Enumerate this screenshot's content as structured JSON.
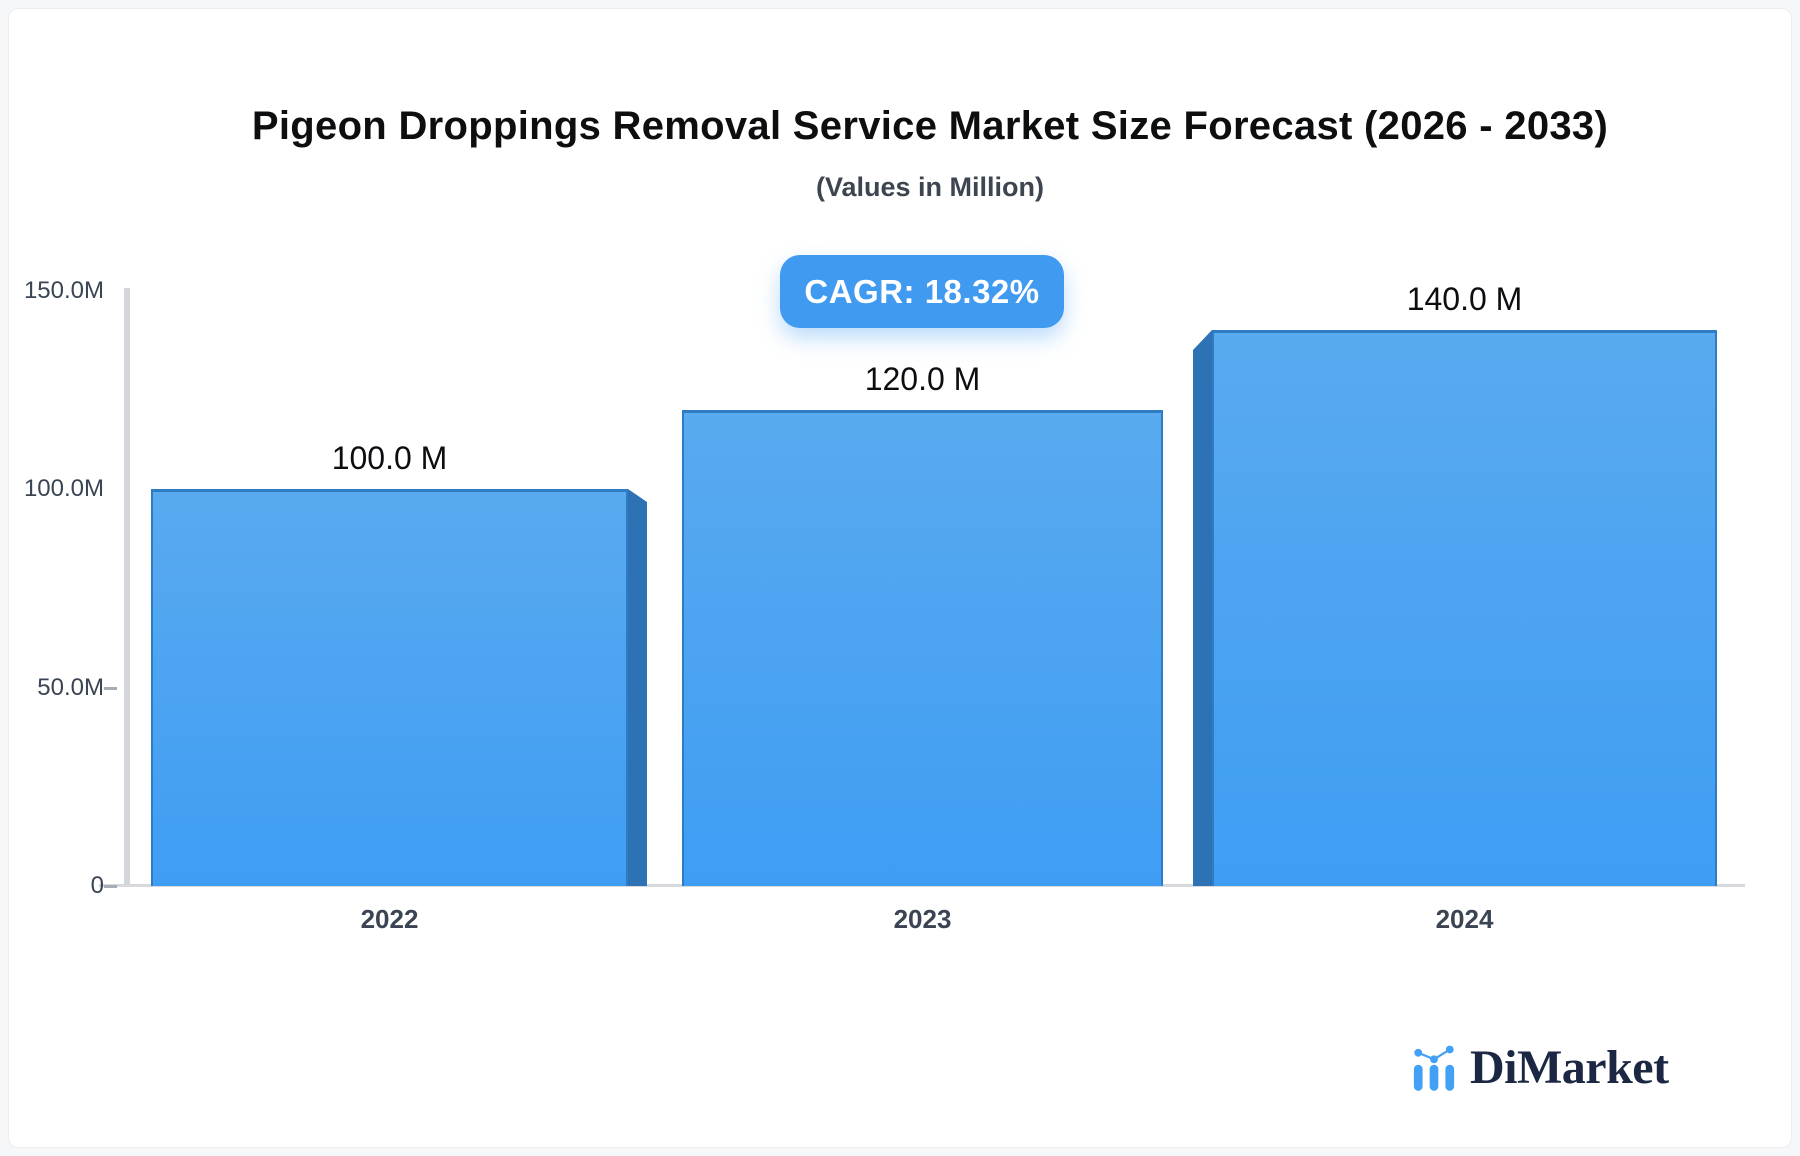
{
  "header": {
    "title": "Pigeon Droppings Removal Service Market Size Forecast (2026 - 2033)",
    "subtitle": "(Values in Million)",
    "cagr_label": "CAGR: 18.32%"
  },
  "chart_data": {
    "type": "bar",
    "title": "Pigeon Droppings Removal Service Market Size Forecast (2026 - 2033)",
    "subtitle": "(Values in Million)",
    "unit": "Million",
    "cagr": "18.32%",
    "categories": [
      "2022",
      "2023",
      "2024"
    ],
    "series": [
      {
        "name": "Market Size",
        "values": [
          100,
          120,
          140
        ]
      }
    ],
    "value_labels": [
      "100.0 M",
      "120.0 M",
      "140.0 M"
    ],
    "y_ticks": [
      {
        "value": 150,
        "label": "150.0M",
        "dash": false
      },
      {
        "value": 100,
        "label": "100.0M",
        "dash": false
      },
      {
        "value": 50,
        "label": "50.0M",
        "dash": true
      },
      {
        "value": 0,
        "label": "0",
        "dash": true
      }
    ],
    "ylim": [
      0,
      155
    ],
    "xlabel": "",
    "ylabel": "",
    "layout_hints": {
      "grid": false,
      "legend": "none",
      "bar_3d_sides": [
        "right",
        "none",
        "left"
      ]
    }
  },
  "colors": {
    "page_bg": "#f6f7f8",
    "card_bg": "#ffffff",
    "title_text": "#0d0e10",
    "subtitle_text": "#3d4551",
    "badge_bg": "#3f9af0",
    "bar_top": "#59aaef",
    "bar_bottom": "#3f9df4",
    "bar_stroke": "#2d7cc4",
    "bar_side": "#2d72b5",
    "axis_line": "#d3d6db",
    "axis_line2": "#d7d9dc",
    "tick_text": "#3a4453",
    "value_text": "#0b0d10",
    "brand_text": "#1c2743",
    "logo_blue": "#42a0f5"
  },
  "footer": {
    "brand": "DiMarket",
    "logo_icon": "bar-chart-trend-icon"
  }
}
